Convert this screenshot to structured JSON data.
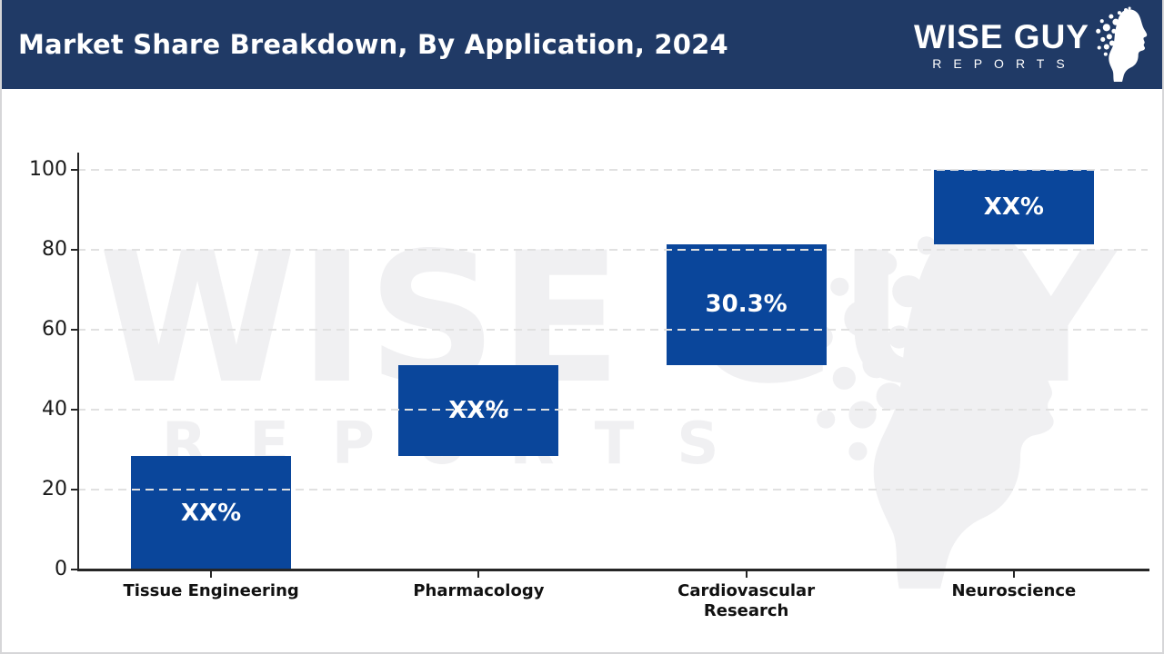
{
  "header": {
    "title": "Market Share Breakdown, By Application, 2024",
    "logo": {
      "line1": "WISE GUY",
      "line2": "REPORTS"
    }
  },
  "watermark": {
    "line1": "WISE GUY",
    "line2": "REPORTS"
  },
  "icons": {
    "logo_head": "dotted-profile-head",
    "watermark_head": "dotted-profile-head"
  },
  "colors": {
    "header_bg": "#203a66",
    "bar": "#0a469b",
    "grid": "#e1e1e1",
    "axis": "#262626",
    "watermark": "#f0f0f2",
    "bar_label_text": "#ffffff",
    "title_text": "#ffffff"
  },
  "chart_data": {
    "type": "bar",
    "subtype": "floating-waterfall",
    "title": "Market Share Breakdown, By Application, 2024",
    "xlabel": "",
    "ylabel": "",
    "ylim": [
      0,
      100
    ],
    "yticks": [
      0,
      20,
      40,
      60,
      80,
      100
    ],
    "grid": "dashed-horizontal",
    "legend": "none",
    "categories": [
      "Tissue Engineering",
      "Pharmacology",
      "Cardiovascular Research",
      "Neuroscience"
    ],
    "bars": [
      {
        "category": "Tissue Engineering",
        "start": 0,
        "end": 28.4,
        "value_label": "XX%"
      },
      {
        "category": "Pharmacology",
        "start": 28.4,
        "end": 51.1,
        "value_label": "XX%"
      },
      {
        "category": "Cardiovascular Research",
        "start": 51.1,
        "end": 81.4,
        "value_label": "30.3%"
      },
      {
        "category": "Neuroscience",
        "start": 81.4,
        "end": 100,
        "value_label": "XX%"
      }
    ]
  }
}
